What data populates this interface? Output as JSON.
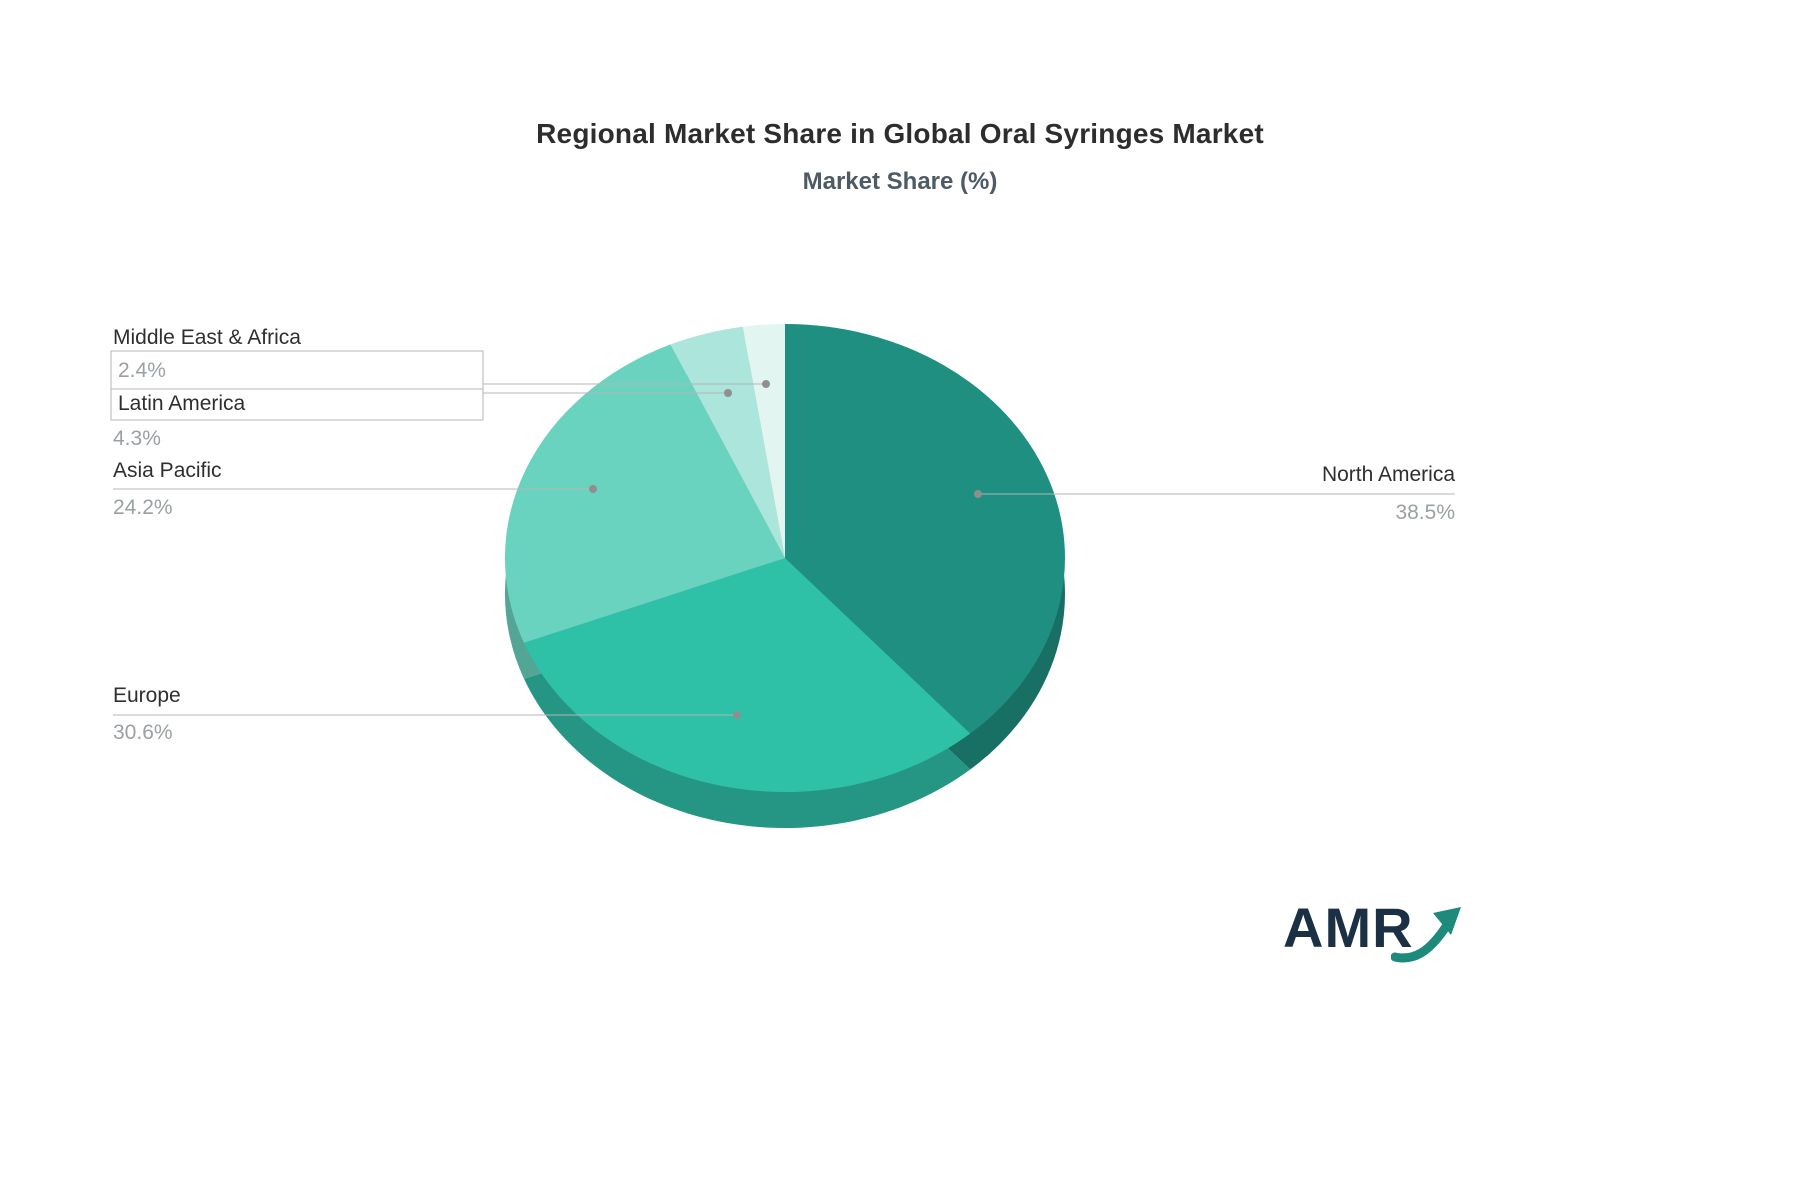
{
  "header": {
    "title": "Regional Market Share in Global Oral Syringes Market",
    "subtitle": "Market Share (%)"
  },
  "chart_data": {
    "type": "pie",
    "style": "3d-pie",
    "title": "Regional Market Share in Global Oral Syringes Market",
    "subtitle": "Market Share (%)",
    "unit": "%",
    "direction": "clockwise",
    "start_angle_deg": 0,
    "legend": "none",
    "label_style": "leader-lines",
    "slices": [
      {
        "label": "North America",
        "value": 38.5,
        "display": "38.5%",
        "color": "#1f8f81"
      },
      {
        "label": "Europe",
        "value": 30.6,
        "display": "30.6%",
        "color": "#2fc0a8"
      },
      {
        "label": "Asia Pacific",
        "value": 24.2,
        "display": "24.2%",
        "color": "#6ad3c0"
      },
      {
        "label": "Latin America",
        "value": 4.3,
        "display": "4.3%",
        "color": "#abe5db"
      },
      {
        "label": "Middle East & Africa",
        "value": 2.4,
        "display": "2.4%",
        "color": "#e2f5f1"
      }
    ]
  },
  "logo": {
    "text": "AMR"
  },
  "colors": {
    "leader_line": "#b5b5b5",
    "anchor_dot": "#8f8f8f",
    "label_text": "#2f2f2f",
    "value_text": "#9aa0a3",
    "logo_text": "#1b3045",
    "logo_arrow": "#1d8a7c",
    "background": "#ffffff"
  }
}
